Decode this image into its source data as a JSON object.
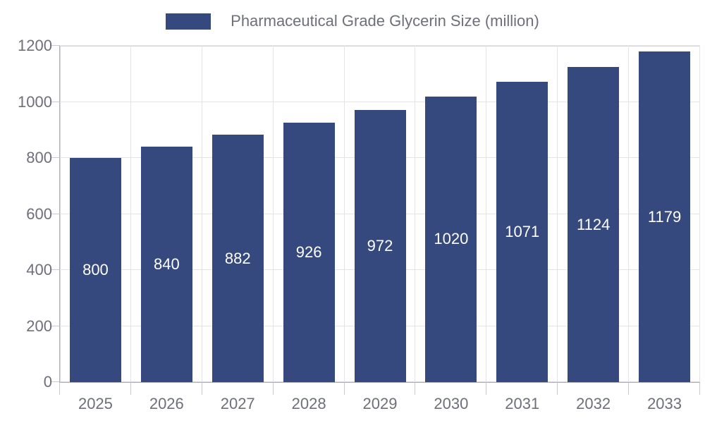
{
  "legend": {
    "label": "Pharmaceutical Grade Glycerin Size (million)"
  },
  "chart_data": {
    "type": "bar",
    "title": "Pharmaceutical Grade Glycerin Size (million)",
    "categories": [
      "2025",
      "2026",
      "2027",
      "2028",
      "2029",
      "2030",
      "2031",
      "2032",
      "2033"
    ],
    "values": [
      800,
      840,
      882,
      926,
      972,
      1020,
      1071,
      1124,
      1179
    ],
    "xlabel": "",
    "ylabel": "",
    "ylim": [
      0,
      1200
    ],
    "yticks": [
      0,
      200,
      400,
      600,
      800,
      1000,
      1200
    ],
    "grid": true,
    "legend_position": "top-center",
    "bar_color": "#36497e",
    "bar_label_color": "#ffffff",
    "axis_text_color": "#6e7079",
    "gridline_color": "#e3e3e8",
    "plot_border_color": "#d6d6db",
    "axis_line_color": "#b1b1b8",
    "tick_color": "#c9c9cf"
  }
}
